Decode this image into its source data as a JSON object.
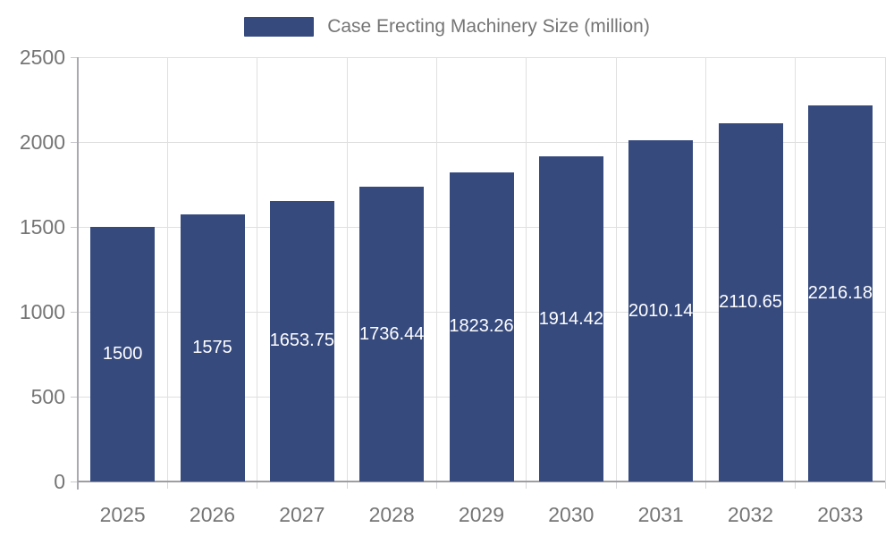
{
  "legend": {
    "label": "Case Erecting Machinery Size (million)"
  },
  "chart_data": {
    "type": "bar",
    "title": "Case Erecting Machinery Size (million)",
    "categories": [
      "2025",
      "2026",
      "2027",
      "2028",
      "2029",
      "2030",
      "2031",
      "2032",
      "2033"
    ],
    "values": [
      1500,
      1575,
      1653.75,
      1736.44,
      1823.26,
      1914.42,
      2010.14,
      2110.65,
      2216.18
    ],
    "value_labels": [
      "1500",
      "1575",
      "1653.75",
      "1736.44",
      "1823.26",
      "1914.42",
      "2010.14",
      "2110.65",
      "2216.18"
    ],
    "xlabel": "",
    "ylabel": "",
    "ylim": [
      0,
      2500
    ],
    "yticks": [
      0,
      500,
      1000,
      1500,
      2000,
      2500
    ],
    "grid": true,
    "legend_position": "top-center",
    "colors": {
      "bar": "#364A7E",
      "bar_label": "#ffffff",
      "axis_text": "#757575",
      "gridline": "#e0e0e0",
      "axis_line": "#9d9da3"
    }
  }
}
